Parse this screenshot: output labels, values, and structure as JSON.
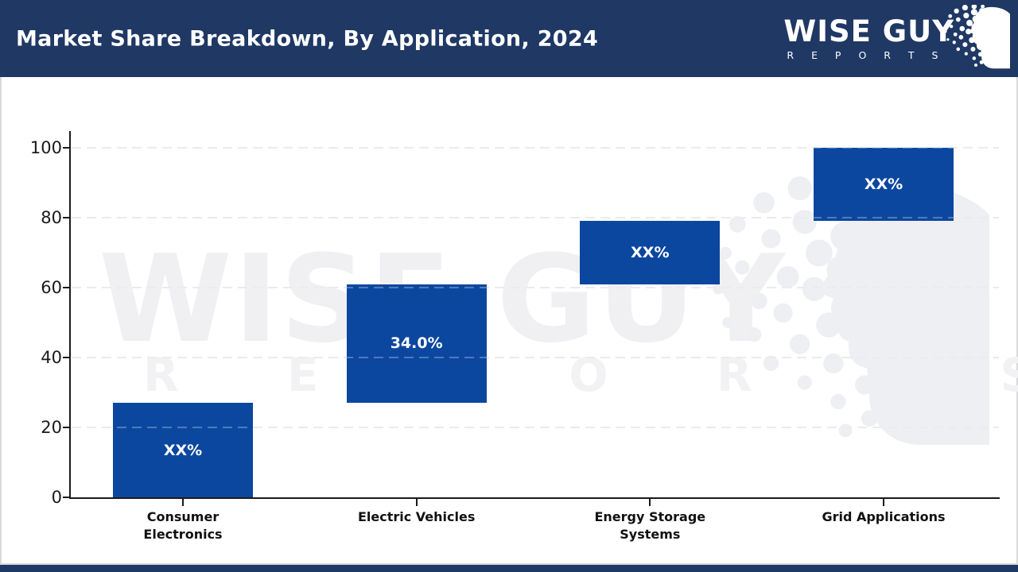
{
  "header": {
    "title": "Market Share Breakdown, By Application, 2024",
    "logo_line1": "WISE GUY",
    "logo_line2": "R E P O R T S"
  },
  "watermark": {
    "line1": "WISE GUY",
    "line2": "R E P O R T S"
  },
  "chart_data": {
    "type": "bar",
    "subtype": "waterfall",
    "title": "Market Share Breakdown, By Application, 2024",
    "xlabel": "",
    "ylabel": "",
    "ylim": [
      0,
      107
    ],
    "yticks": [
      0,
      20,
      40,
      60,
      80,
      100
    ],
    "grid": "horizontal-dashed",
    "legend": "none",
    "bar_color": "#0c479f",
    "bar_label_color": "#ffffff",
    "segments": [
      {
        "category": "Consumer\nElectronics",
        "label": "XX%",
        "start": 0,
        "end": 27,
        "value": 27
      },
      {
        "category": "Electric Vehicles",
        "label": "34.0%",
        "start": 27,
        "end": 61,
        "value": 34.0
      },
      {
        "category": "Energy Storage\nSystems",
        "label": "XX%",
        "start": 61,
        "end": 79,
        "value": 18
      },
      {
        "category": "Grid Applications",
        "label": "XX%",
        "start": 79,
        "end": 100,
        "value": 21
      }
    ]
  }
}
